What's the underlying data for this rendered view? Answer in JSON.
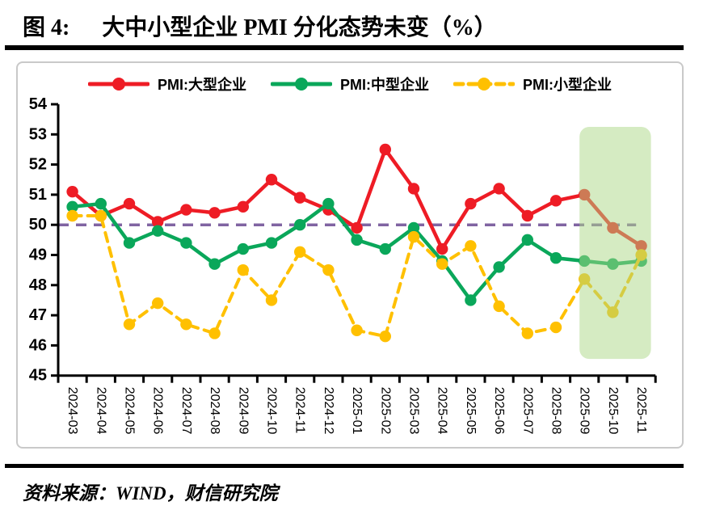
{
  "header": {
    "figure_label": "图 4:",
    "title": "大中小型企业 PMI 分化态势未变（%）"
  },
  "footer": {
    "source": "资料来源：WIND，财信研究院"
  },
  "panel": {
    "border_color": "#c9c9c9",
    "axis_color": "#000000",
    "rule_color": "#000000"
  },
  "chart_data": {
    "type": "line",
    "title": "大中小型企业 PMI 分化态势未变（%）",
    "xlabel": "",
    "ylabel": "",
    "ylim": [
      45,
      54
    ],
    "yticks": [
      45,
      46,
      47,
      48,
      49,
      50,
      51,
      52,
      53,
      54
    ],
    "grid": false,
    "legend_position": "top",
    "categories": [
      "2024-03",
      "2024-04",
      "2024-05",
      "2024-06",
      "2024-07",
      "2024-08",
      "2024-09",
      "2024-10",
      "2024-11",
      "2024-12",
      "2025-01",
      "2025-02",
      "2025-03",
      "2025-04",
      "2025-05",
      "2025-06",
      "2025-07",
      "2025-08",
      "2025-09",
      "2025-10",
      "2025-11"
    ],
    "series": [
      {
        "id": "large",
        "name": "PMI:大型企业",
        "color": "#ee1c25",
        "style": "solid",
        "values": [
          51.1,
          50.3,
          50.7,
          50.1,
          50.5,
          50.4,
          50.6,
          51.5,
          50.9,
          50.5,
          49.9,
          52.5,
          51.2,
          49.2,
          50.7,
          51.2,
          50.3,
          50.8,
          51.0,
          49.9,
          49.3
        ]
      },
      {
        "id": "medium",
        "name": "PMI:中型企业",
        "color": "#0aa75a",
        "style": "solid",
        "values": [
          50.6,
          50.7,
          49.4,
          49.8,
          49.4,
          48.7,
          49.2,
          49.4,
          50.0,
          50.7,
          49.5,
          49.2,
          49.9,
          48.8,
          47.5,
          48.6,
          49.5,
          48.9,
          48.8,
          48.7,
          48.8
        ]
      },
      {
        "id": "small",
        "name": "PMI:小型企业",
        "color": "#ffc000",
        "style": "dashed",
        "values": [
          50.3,
          50.3,
          46.7,
          47.4,
          46.7,
          46.4,
          48.5,
          47.5,
          49.1,
          48.5,
          46.5,
          46.3,
          49.6,
          48.7,
          49.3,
          47.3,
          46.4,
          46.6,
          48.2,
          47.1,
          49.0
        ]
      }
    ],
    "reference_line": {
      "value": 50,
      "color": "#8064a2",
      "style": "dashed"
    },
    "highlight_region": {
      "from": "2025-09",
      "to": "2025-11",
      "color": "#abd785",
      "opacity": 0.5
    }
  }
}
